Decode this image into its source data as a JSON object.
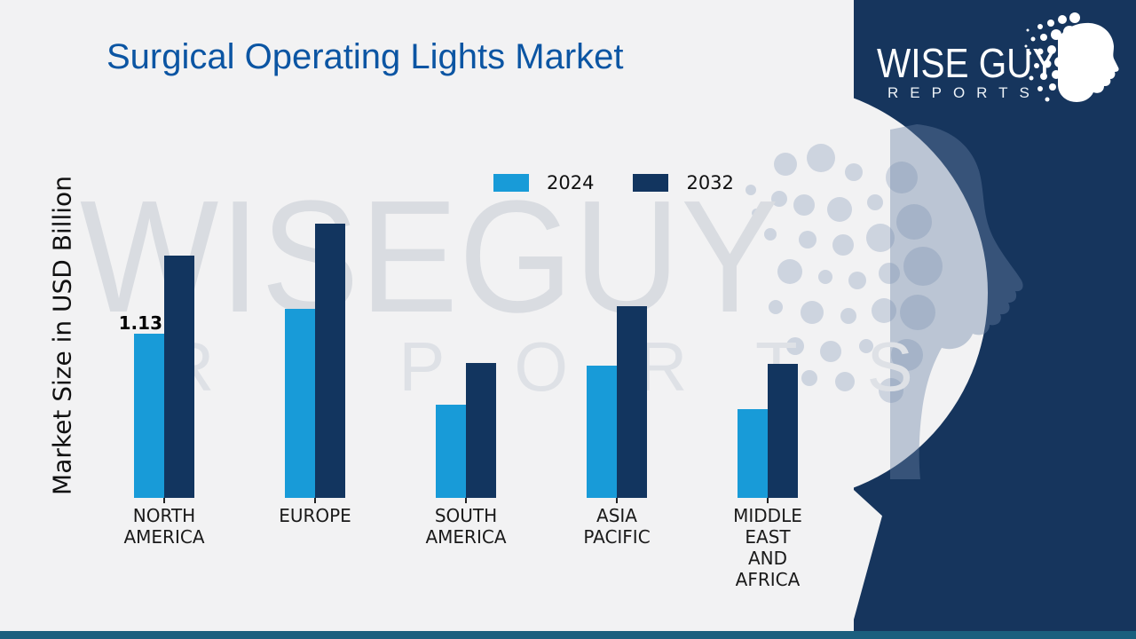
{
  "page": {
    "title": "Surgical Operating Lights Market",
    "colors": {
      "background": "#f2f2f3",
      "title": "#0b55a3",
      "brand_panel": "#16355d",
      "bottom_bar": "#1a5f7e",
      "watermark": "#d9dce1"
    }
  },
  "branding": {
    "logo_title": "WISE GUY",
    "logo_subtitle": "REPORTS",
    "watermark_title": "WISEGUY",
    "watermark_subtitle": "REPORTS"
  },
  "legend": {
    "items": [
      {
        "label": "2024",
        "color": "#189bd8"
      },
      {
        "label": "2032",
        "color": "#12355f"
      }
    ]
  },
  "chart_data": {
    "type": "bar",
    "title": "Surgical Operating Lights Market",
    "xlabel": "",
    "ylabel": "Market Size in USD Billion",
    "unit": "USD Billion",
    "categories": [
      "NORTH AMERICA",
      "EUROPE",
      "SOUTH AMERICA",
      "ASIA PACIFIC",
      "MIDDLE EAST AND AFRICA"
    ],
    "series": [
      {
        "name": "2024",
        "color": "#189bd8",
        "values": [
          1.13,
          1.3,
          0.64,
          0.91,
          0.61
        ]
      },
      {
        "name": "2032",
        "color": "#12355f",
        "values": [
          1.67,
          1.89,
          0.93,
          1.32,
          0.92
        ]
      }
    ],
    "data_labels": [
      {
        "series": "2024",
        "category": "NORTH AMERICA",
        "value": 1.13,
        "text": "1.13"
      }
    ],
    "ylim": [
      0,
      2.0
    ],
    "grid": false,
    "legend_position": "top-center"
  }
}
